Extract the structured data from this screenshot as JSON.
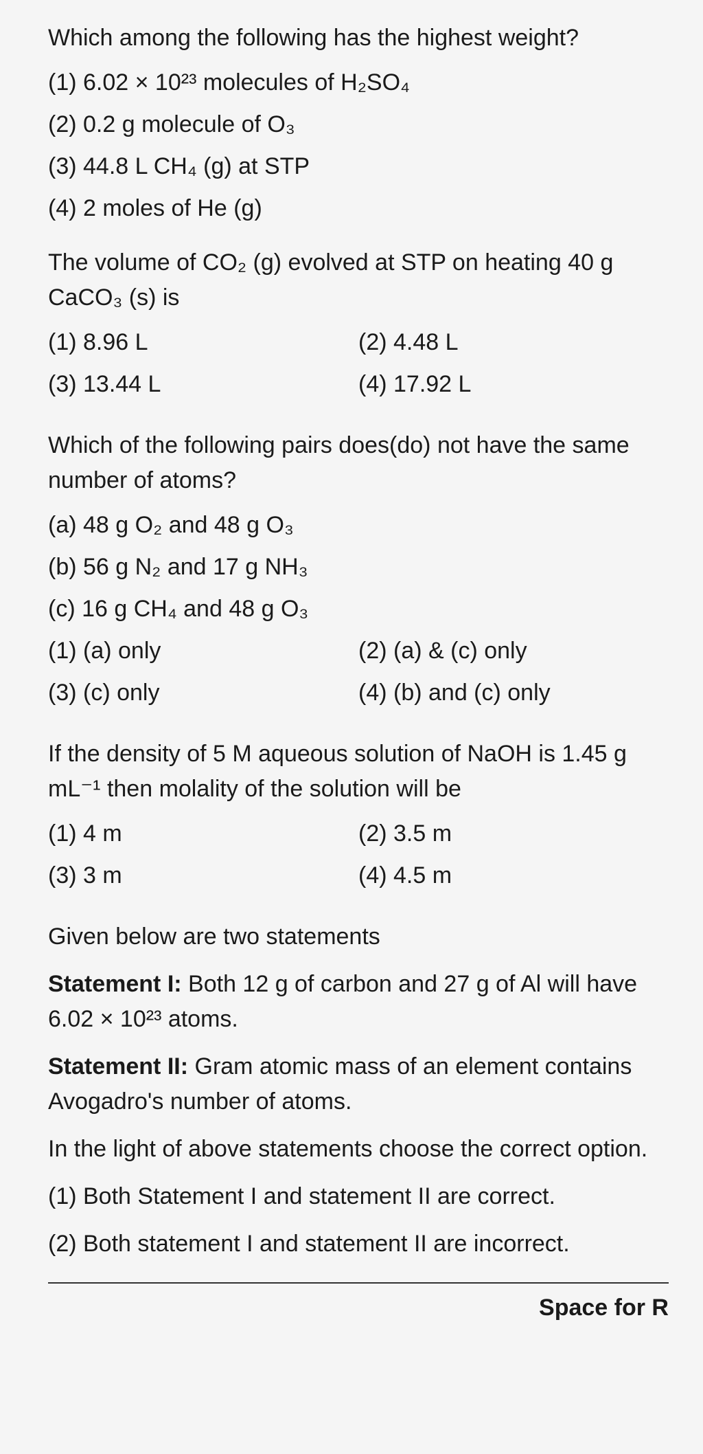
{
  "q1": {
    "text": "Which among the following has the highest weight?",
    "opts": [
      "(1)  6.02 × 10²³ molecules of H₂SO₄",
      "(2)  0.2 g molecule of O₃",
      "(3)  44.8 L CH₄ (g) at STP",
      "(4)  2 moles of He (g)"
    ]
  },
  "q2": {
    "text": "The volume of CO₂ (g) evolved at STP on heating 40 g CaCO₃ (s) is",
    "opts": [
      "(1)  8.96 L",
      "(2)  4.48 L",
      "(3)  13.44 L",
      "(4)  17.92 L"
    ]
  },
  "q3": {
    "text": "Which of the following pairs does(do) not have the same number of atoms?",
    "subs": [
      "(a)  48 g O₂ and 48 g O₃",
      "(b)  56 g N₂ and 17 g NH₃",
      "(c)  16 g CH₄ and 48 g O₃"
    ],
    "opts": [
      "(1)  (a) only",
      "(2)  (a) & (c) only",
      "(3)  (c) only",
      "(4)  (b) and (c) only"
    ]
  },
  "q4": {
    "text": "If the density of 5 M aqueous solution of NaOH is 1.45 g mL⁻¹ then molality of the solution will be",
    "opts": [
      "(1)  4 m",
      "(2)  3.5 m",
      "(3)  3 m",
      "(4)  4.5 m"
    ]
  },
  "q5": {
    "intro": "Given below are two statements",
    "s1_label": "Statement I:",
    "s1_text": " Both 12 g of carbon and 27 g of Al will have 6.02 × 10²³ atoms.",
    "s2_label": "Statement II:",
    "s2_text": " Gram atomic mass of an element contains Avogadro's number of atoms.",
    "instr": "In the light of above statements choose the correct option.",
    "opts": [
      "(1)  Both Statement I and statement II are correct.",
      "(2)  Both statement I and statement II are incorrect."
    ]
  },
  "footer": "Space for R"
}
